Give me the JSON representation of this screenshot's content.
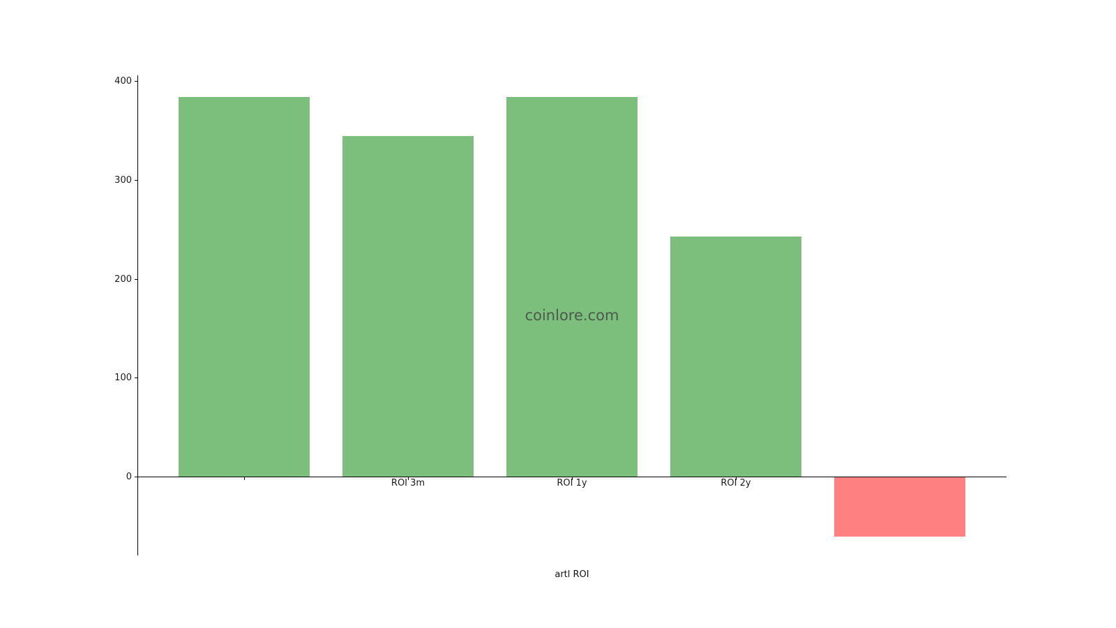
{
  "watermark_text": "coinlore.com",
  "chart_data": {
    "type": "bar",
    "title": "artl ROI",
    "title_position": "bottom-center",
    "categories": [
      "",
      "ROI 3m",
      "ROI 1y",
      "ROI 2y",
      ""
    ],
    "values": [
      384,
      344,
      384,
      243,
      -60
    ],
    "series": [
      {
        "name": "artl ROI",
        "values": [
          384,
          344,
          384,
          243,
          -60
        ]
      }
    ],
    "bar_colors": [
      "#7CBF7C",
      "#7CBF7C",
      "#7CBF7C",
      "#7CBF7C",
      "#FF8080"
    ],
    "positive_color": "#7CBF7C",
    "negative_color": "#FF8080",
    "xlabel": "",
    "ylabel": "",
    "ytick_labels": [
      "0",
      "100",
      "200",
      "300",
      "400"
    ],
    "yticks": [
      0,
      100,
      200,
      300,
      400
    ],
    "ylim": [
      -82,
      406
    ],
    "xaxis_at_zero": true,
    "grid": false,
    "legend": "none",
    "axis_color": "#000000",
    "tick_text_color": "#1a1a1a",
    "watermark": "coinlore.com",
    "background_color": "#ffffff"
  }
}
